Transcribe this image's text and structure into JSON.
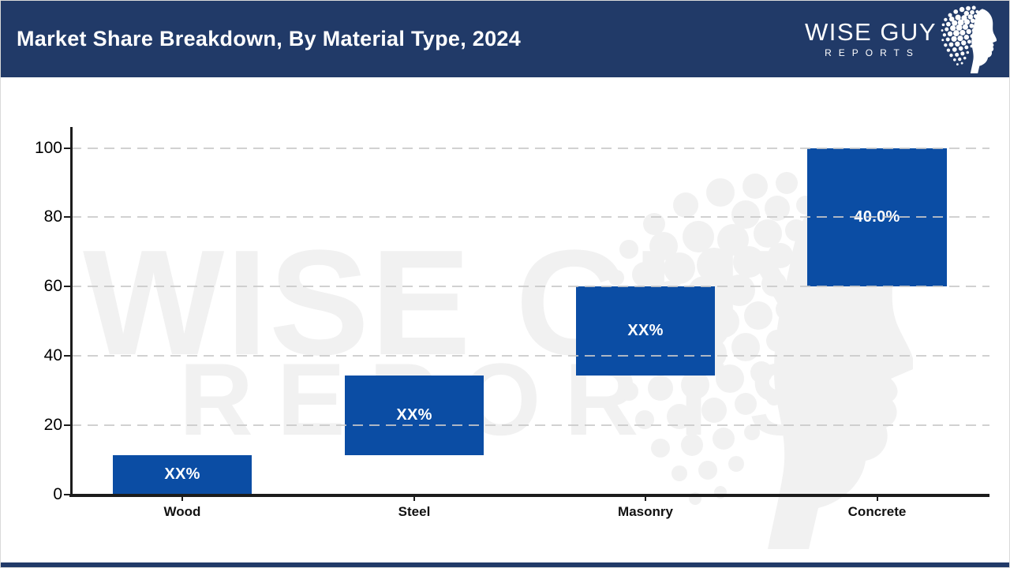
{
  "header": {
    "title": "Market Share Breakdown, By Material Type, 2024",
    "logo": {
      "line1": "WISE GUY",
      "line2": "REPORTS"
    }
  },
  "watermark": {
    "line1": "WISE GUY",
    "line2": "REPORTS"
  },
  "colors": {
    "header_bg": "#213a68",
    "footer_bg": "#213a68",
    "bar": "#0b4da4",
    "axis": "#1c1c1c",
    "gridline": "#c9c9c9",
    "watermark": "#f1f1f1",
    "bar_label": "#ffffff"
  },
  "chart_data": {
    "type": "bar",
    "subtype": "waterfall",
    "title": "Market Share Breakdown, By Material Type, 2024",
    "categories": [
      "Wood",
      "Steel",
      "Masonry",
      "Concrete"
    ],
    "segments": [
      {
        "category": "Wood",
        "start": 0,
        "end": 11.2,
        "label": "XX%"
      },
      {
        "category": "Steel",
        "start": 11.2,
        "end": 34.3,
        "label": "XX%"
      },
      {
        "category": "Masonry",
        "start": 34.3,
        "end": 60,
        "label": "XX%"
      },
      {
        "category": "Concrete",
        "start": 60,
        "end": 100,
        "label": "40.0%"
      }
    ],
    "ylim": [
      0,
      100
    ],
    "yticks": [
      0,
      20,
      40,
      60,
      80,
      100
    ],
    "xlabel": "",
    "ylabel": "",
    "grid": "dashed-horizontal",
    "legend": "none"
  }
}
